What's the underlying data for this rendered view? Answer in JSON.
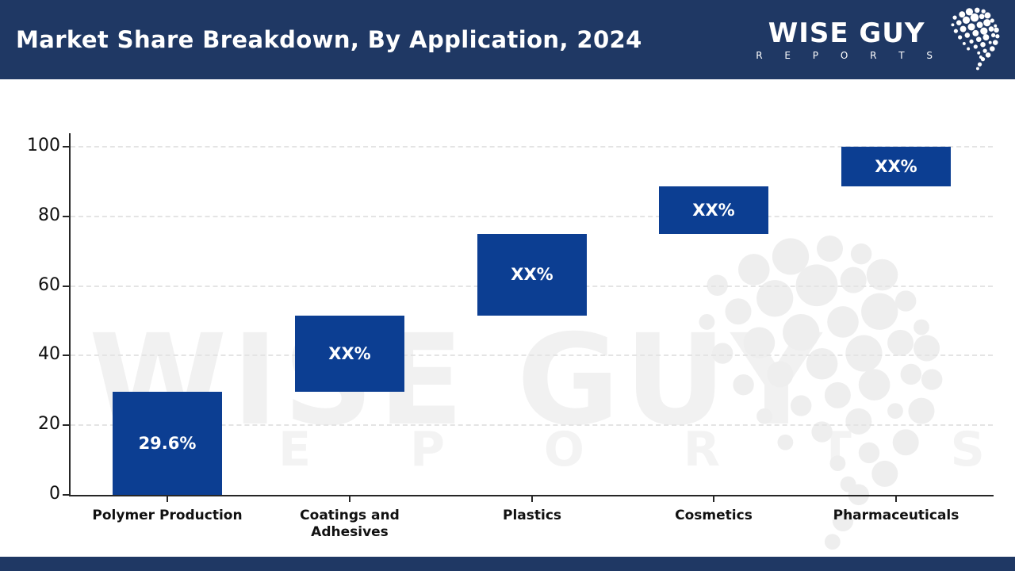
{
  "header": {
    "title": "Market Share Breakdown, By Application, 2024",
    "logo": {
      "line1": "WISE GUY",
      "line2": "R E P O R T S"
    }
  },
  "watermark": {
    "line1": "WISE GUY",
    "line2": "R E P O R T S"
  },
  "colors": {
    "header_bg": "#1f3864",
    "bar_fill": "#0c3e92",
    "gridline": "#e4e4e4",
    "axis": "#262626",
    "bar_label": "#ffffff",
    "watermark": "#f1f1f1"
  },
  "chart_data": {
    "type": "bar",
    "subtype": "waterfall",
    "title": "Market Share Breakdown, By Application, 2024",
    "categories": [
      "Polymer Production",
      "Coatings and\nAdhesives",
      "Plastics",
      "Cosmetics",
      "Pharmaceuticals"
    ],
    "bars": [
      {
        "category": "Polymer Production",
        "start": 0,
        "end": 29.6,
        "label": "29.6%"
      },
      {
        "category": "Coatings and\nAdhesives",
        "start": 29.6,
        "end": 51.5,
        "label": "XX%"
      },
      {
        "category": "Plastics",
        "start": 51.5,
        "end": 75.0,
        "label": "XX%"
      },
      {
        "category": "Cosmetics",
        "start": 75.0,
        "end": 88.6,
        "label": "XX%"
      },
      {
        "category": "Pharmaceuticals",
        "start": 88.6,
        "end": 100.0,
        "label": "XX%"
      }
    ],
    "yticks": [
      0,
      20,
      40,
      60,
      80,
      100
    ],
    "ylim": [
      0,
      104
    ],
    "xlabel": "",
    "ylabel": "",
    "grid": "horizontal-dashed",
    "legend": "none",
    "bar_color": "#0c3e92"
  }
}
